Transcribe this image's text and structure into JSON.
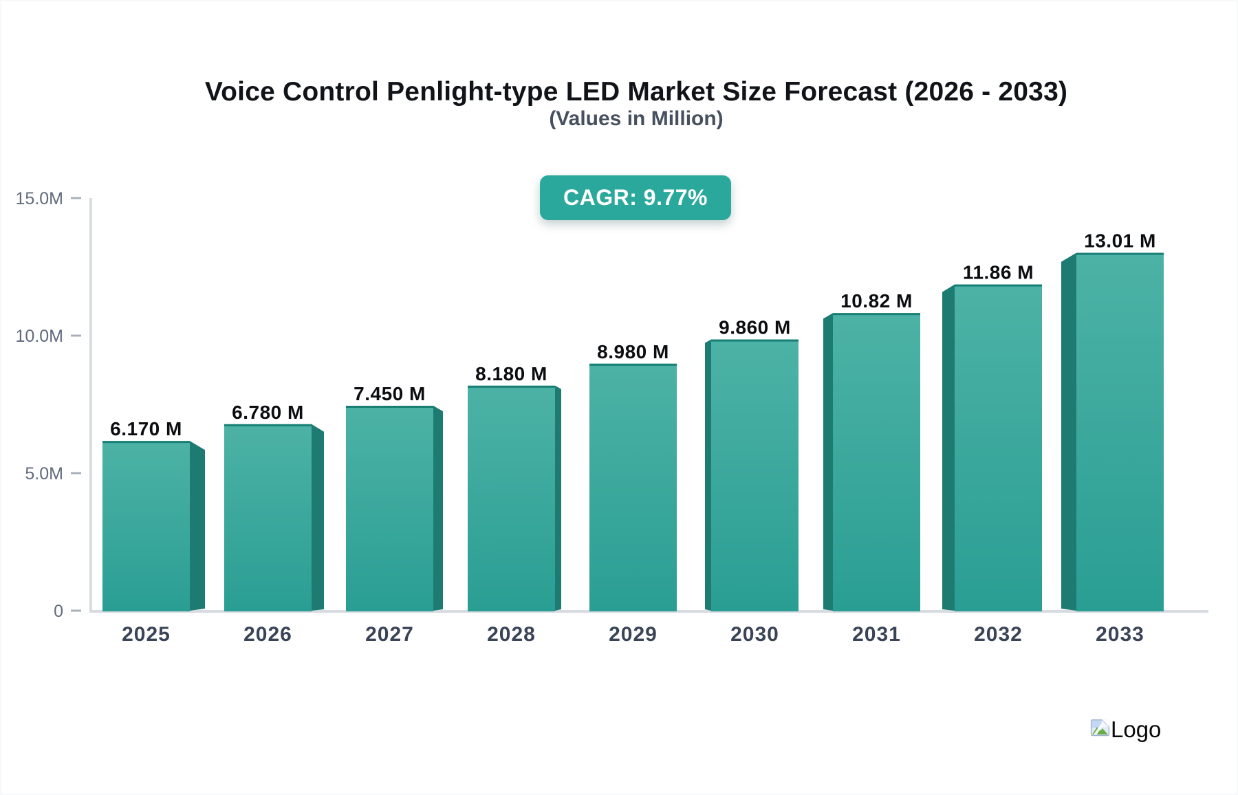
{
  "header": {
    "title": "Voice Control Penlight-type LED Market Size Forecast (2026 - 2033)",
    "subtitle": "(Values in Million)",
    "cagr_badge": "CAGR: 9.77%"
  },
  "logo": {
    "alt_text": "Logo"
  },
  "colors": {
    "badge_bg": "#2aa89b",
    "bar_gradient_top": "#4db2a6",
    "bar_gradient_bottom": "#2a9e93",
    "bar_side": "#1e7b72",
    "bar_top_edge": "#177f74",
    "axis_line": "#d8dbe0",
    "tick_mark": "#a9b0ba",
    "y_label": "#5f6b7c",
    "x_label": "#3a4457",
    "value_label": "#0b0d10"
  },
  "chart_data": {
    "type": "bar",
    "title": "Voice Control Penlight-type LED Market Size Forecast (2026 - 2033)",
    "subtitle": "(Values in Million)",
    "cagr": "9.77%",
    "unit": "Million",
    "categories": [
      "2025",
      "2026",
      "2027",
      "2028",
      "2029",
      "2030",
      "2031",
      "2032",
      "2033"
    ],
    "values": [
      6.17,
      6.78,
      7.45,
      8.18,
      8.98,
      9.86,
      10.82,
      11.86,
      13.01
    ],
    "value_labels": [
      "6.170 M",
      "6.780 M",
      "7.450 M",
      "8.180 M",
      "8.980 M",
      "9.860 M",
      "10.82 M",
      "11.86 M",
      "13.01 M"
    ],
    "ylim": [
      0,
      15
    ],
    "y_ticks": [
      {
        "value": 0,
        "label": "0"
      },
      {
        "value": 5,
        "label": "5.0M"
      },
      {
        "value": 10,
        "label": "10.0M"
      },
      {
        "value": 15,
        "label": "15.0M"
      }
    ],
    "grid": false,
    "legend": false,
    "bar_style": "3d-perspective-teal"
  }
}
